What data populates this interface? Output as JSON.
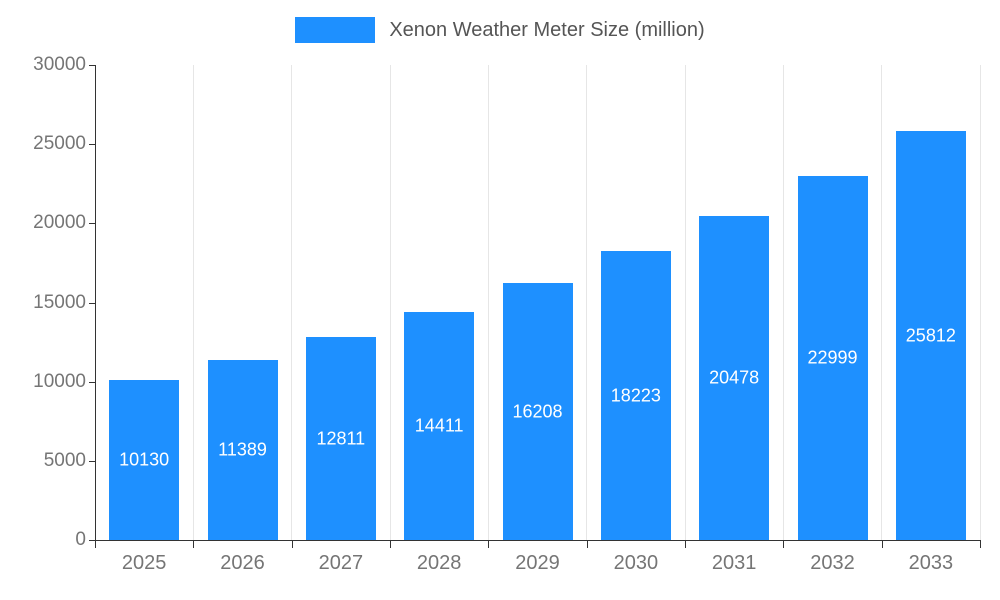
{
  "chart_data": {
    "type": "bar",
    "title": "Xenon Weather Meter Size (million)",
    "legend": {
      "label": "Xenon Weather Meter Size (million)",
      "position": "top-center"
    },
    "categories": [
      "2025",
      "2026",
      "2027",
      "2028",
      "2029",
      "2030",
      "2031",
      "2032",
      "2033"
    ],
    "series": [
      {
        "name": "Xenon Weather Meter Size (million)",
        "values": [
          10130,
          11389,
          12811,
          14411,
          16208,
          18223,
          20478,
          22999,
          25812
        ]
      }
    ],
    "value_labels": [
      "10130",
      "11389",
      "12811",
      "14411",
      "16208",
      "18223",
      "20478",
      "22999",
      "25812"
    ],
    "xlabel": "",
    "ylabel": "",
    "ylim": [
      0,
      30000
    ],
    "yticks": [
      0,
      5000,
      10000,
      15000,
      20000,
      25000,
      30000
    ],
    "grid": "vertical-only",
    "colors": {
      "bar": "#1E90FF",
      "axis_text": "#757575",
      "title_text": "#555555",
      "value_label": "#ffffff",
      "gridline": "#e6e6e6",
      "axis_line": "#333333"
    }
  }
}
